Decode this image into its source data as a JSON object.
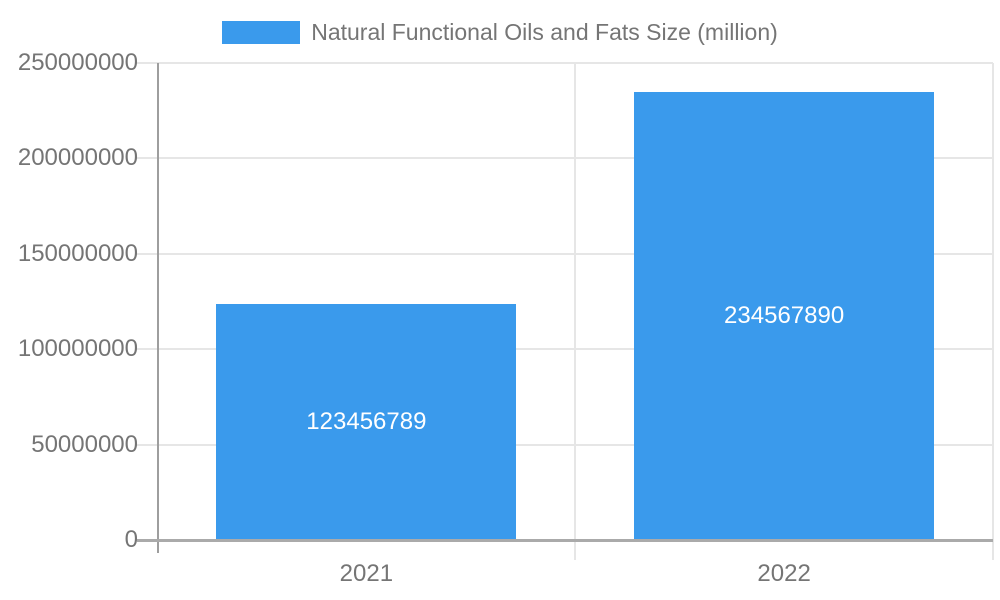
{
  "legend": {
    "label": "Natural Functional Oils and Fats Size (million)"
  },
  "chart_data": {
    "type": "bar",
    "title": "Natural Functional Oils and Fats Size (million)",
    "categories": [
      "2021",
      "2022"
    ],
    "series": [
      {
        "name": "Natural Functional Oils and Fats Size (million)",
        "values": [
          123456789,
          234567890
        ]
      }
    ],
    "value_labels": [
      "123456789",
      "234567890"
    ],
    "xlabel": "",
    "ylabel": "",
    "ylim": [
      0,
      250000000
    ],
    "y_ticks": [
      0,
      50000000,
      100000000,
      150000000,
      200000000,
      250000000
    ],
    "y_tick_labels": [
      "0",
      "50000000",
      "100000000",
      "150000000",
      "200000000",
      "250000000"
    ],
    "grid": true,
    "legend_position": "top-center",
    "colors": {
      "bar": "#3a9aec",
      "bar_value_text": "#ffffff",
      "tick_text": "#757575",
      "legend_text": "#757575",
      "gridline": "#e6e6e6",
      "axis_line": "#9e9e9e",
      "baseline": "#aaaaaa",
      "background": "#ffffff"
    }
  }
}
